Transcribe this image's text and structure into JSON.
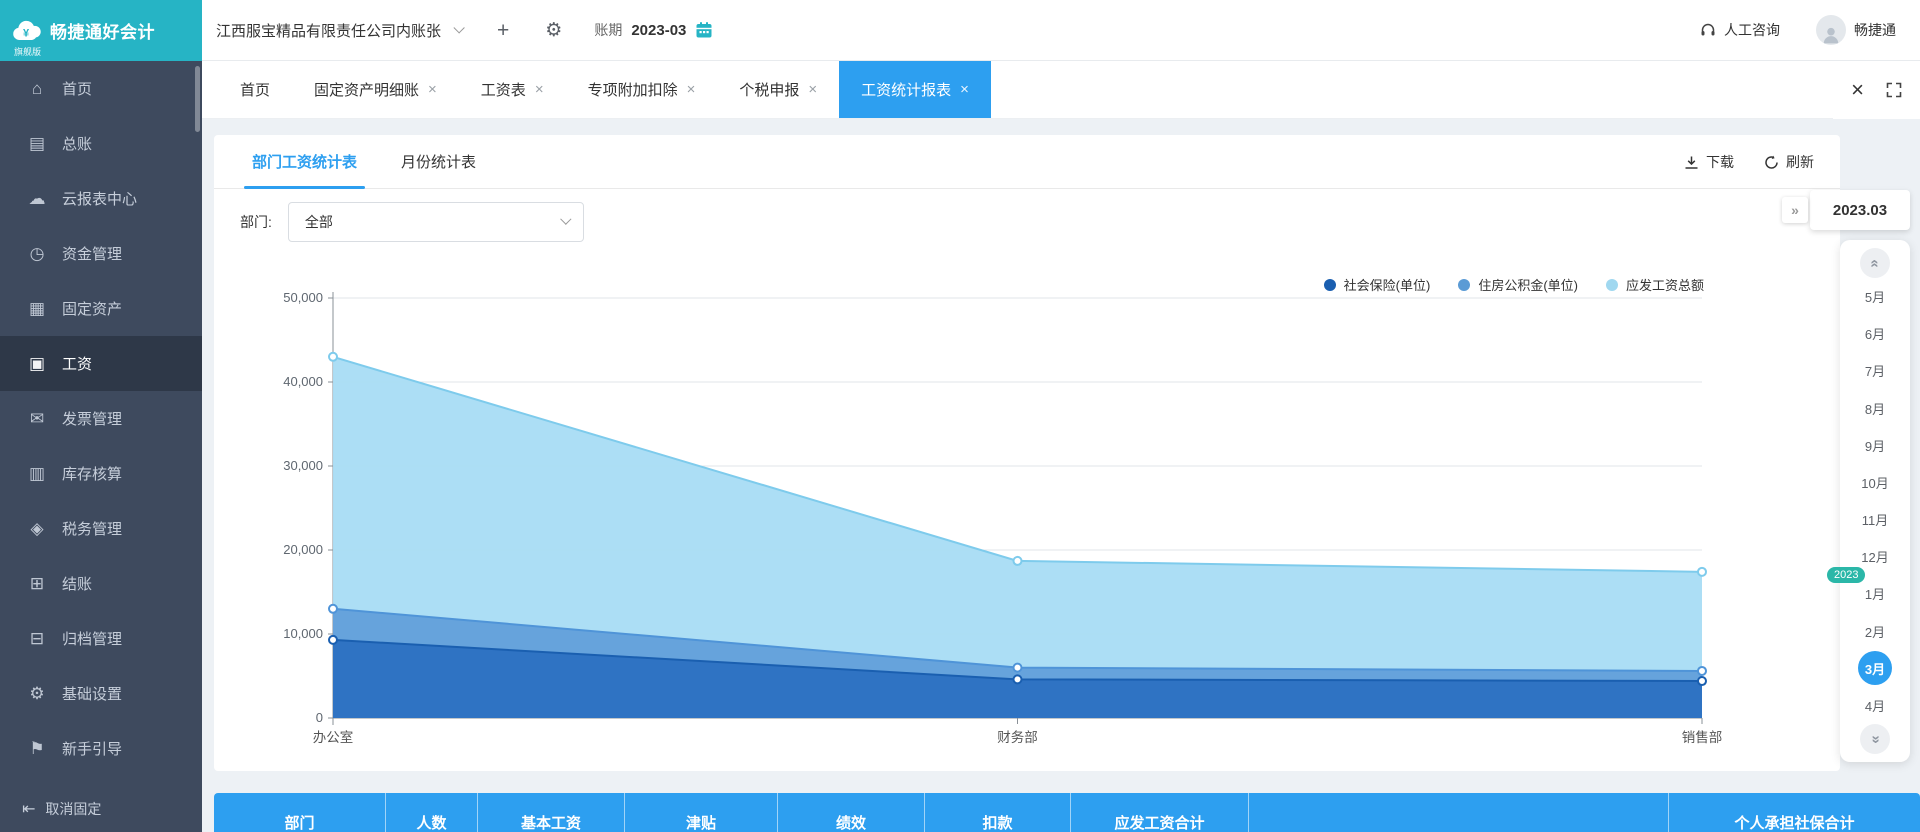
{
  "header": {
    "logo_title": "畅捷通好会计",
    "logo_badge": "旗舰版",
    "account_set": "江西服宝精品有限责任公司内账张",
    "period_label": "账期",
    "period_value": "2023-03",
    "support_label": "人工咨询",
    "user_name": "畅捷通"
  },
  "sidebar": {
    "items": [
      {
        "label": "首页",
        "icon": "home-icon",
        "active": false
      },
      {
        "label": "总账",
        "icon": "ledger-icon",
        "active": false
      },
      {
        "label": "云报表中心",
        "icon": "cloud-report-icon",
        "active": false
      },
      {
        "label": "资金管理",
        "icon": "funds-icon",
        "active": false
      },
      {
        "label": "固定资产",
        "icon": "fixed-assets-icon",
        "active": false
      },
      {
        "label": "工资",
        "icon": "salary-icon",
        "active": true
      },
      {
        "label": "发票管理",
        "icon": "invoice-icon",
        "active": false
      },
      {
        "label": "库存核算",
        "icon": "inventory-icon",
        "active": false
      },
      {
        "label": "税务管理",
        "icon": "tax-icon",
        "active": false
      },
      {
        "label": "结账",
        "icon": "closing-icon",
        "active": false
      },
      {
        "label": "归档管理",
        "icon": "archive-icon",
        "active": false
      },
      {
        "label": "基础设置",
        "icon": "settings-icon",
        "active": false
      },
      {
        "label": "新手引导",
        "icon": "guide-icon",
        "active": false
      }
    ],
    "unpin_label": "取消固定"
  },
  "tabbar": {
    "tabs": [
      {
        "label": "首页",
        "closable": false,
        "active": false
      },
      {
        "label": "固定资产明细账",
        "closable": true,
        "active": false
      },
      {
        "label": "工资表",
        "closable": true,
        "active": false
      },
      {
        "label": "专项附加扣除",
        "closable": true,
        "active": false
      },
      {
        "label": "个税申报",
        "closable": true,
        "active": false
      },
      {
        "label": "工资统计报表",
        "closable": true,
        "active": true
      }
    ]
  },
  "report": {
    "subtabs": [
      {
        "label": "部门工资统计表",
        "active": true
      },
      {
        "label": "月份统计表",
        "active": false
      }
    ],
    "download_label": "下载",
    "refresh_label": "刷新",
    "filter_label": "部门:",
    "filter_value": "全部"
  },
  "chart_data": {
    "type": "area",
    "categories": [
      "办公室",
      "财务部",
      "销售部"
    ],
    "series": [
      {
        "name": "社会保险(单位)",
        "values": [
          9300,
          4600,
          4400
        ],
        "line_color": "#1a5fb0",
        "fill_color": "#2a6fc0",
        "dot_color": "#1a5fb0",
        "fill_opacity": 0.92
      },
      {
        "name": "住房公积金(单位)",
        "values": [
          13000,
          6000,
          5600
        ],
        "line_color": "#4f94d8",
        "fill_color": "#5e9cd9",
        "dot_color": "#5b9bd5",
        "fill_opacity": 0.9
      },
      {
        "name": "应发工资总额",
        "values": [
          43000,
          18700,
          17400
        ],
        "line_color": "#7ecbec",
        "fill_color": "#a8dcf4",
        "dot_color": "#a0d8f0",
        "fill_opacity": 0.95
      }
    ],
    "ylim": [
      0,
      50000
    ],
    "ytick_step": 10000,
    "legend_position": "top-right",
    "grid": true
  },
  "month_panel": {
    "current": "2023.03",
    "year_badge": "2023",
    "months": [
      "5月",
      "6月",
      "7月",
      "8月",
      "9月",
      "10月",
      "11月",
      "12月",
      "1月",
      "2月",
      "3月",
      "4月"
    ],
    "active_month": "3月"
  },
  "bottom_table": {
    "columns": [
      "部门",
      "人数",
      "基本工资",
      "津贴",
      "绩效",
      "扣款",
      "应发工资合计",
      "",
      "个人承担社保合计"
    ]
  }
}
